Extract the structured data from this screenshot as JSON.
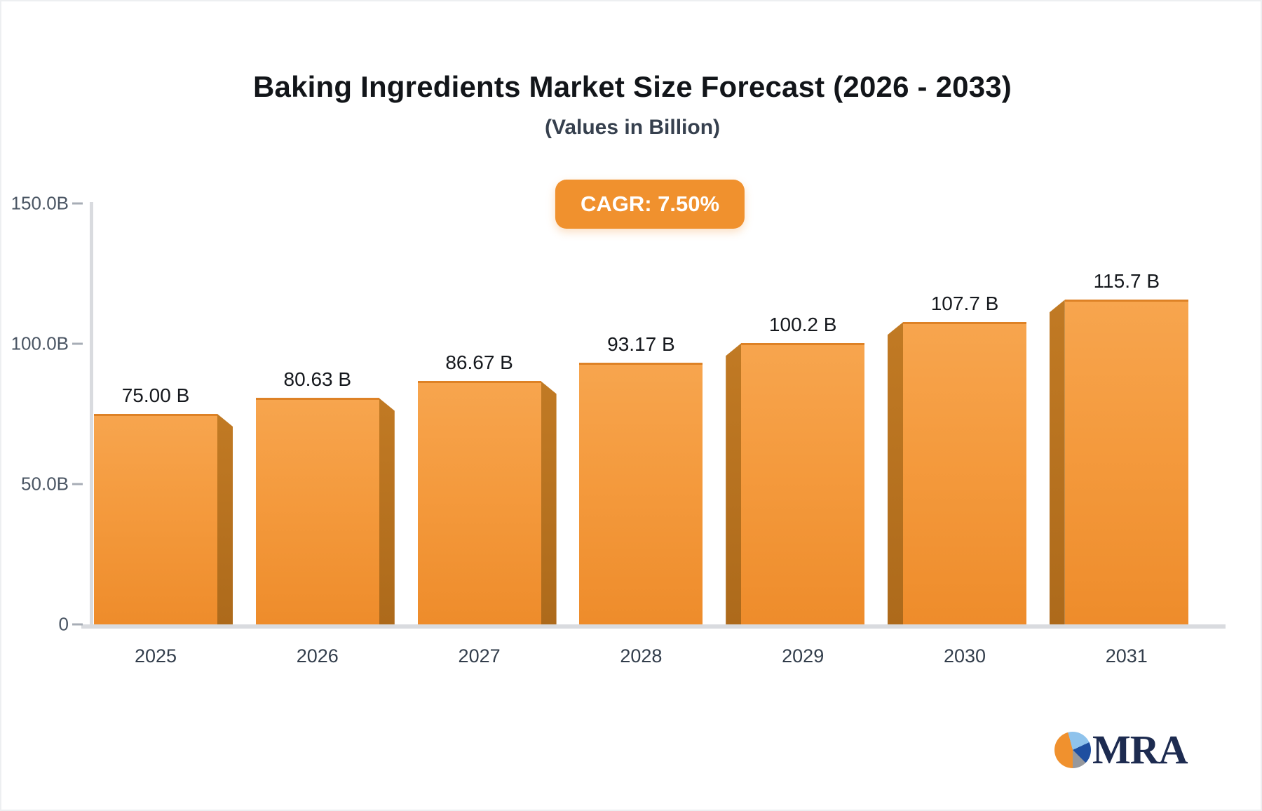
{
  "header": {
    "title": "Baking Ingredients Market Size Forecast (2026 - 2033)",
    "subtitle": "(Values in Billion)",
    "cagr_label": "CAGR: 7.50%"
  },
  "chart_data": {
    "type": "bar",
    "title": "Baking Ingredients Market Size Forecast (2026 - 2033)",
    "subtitle": "(Values in Billion)",
    "xlabel": "",
    "ylabel": "",
    "unit": "Billion",
    "cagr_percent": 7.5,
    "categories": [
      "2025",
      "2026",
      "2027",
      "2028",
      "2029",
      "2030",
      "2031"
    ],
    "values": [
      75.0,
      80.63,
      86.67,
      93.17,
      100.2,
      107.7,
      115.7
    ],
    "value_labels": [
      "75.00 B",
      "80.63 B",
      "86.67 B",
      "93.17 B",
      "100.2 B",
      "107.7 B",
      "115.7 B"
    ],
    "ylim": [
      0,
      150
    ],
    "yticks": [
      {
        "value": 150,
        "label": "150.0B"
      },
      {
        "value": 100,
        "label": "100.0B"
      },
      {
        "value": 50,
        "label": "50.0B"
      },
      {
        "value": 0,
        "label": "0"
      }
    ],
    "grid": false,
    "legend": "none",
    "style": "3d-column",
    "colors": {
      "bar_top": "#F7A54E",
      "bar_bottom": "#EE8C2B",
      "bar_side": "#B8721F",
      "axis": "#D9DBDF",
      "badge_background": "#F0912E",
      "badge_text": "#FFFFFF"
    }
  },
  "branding": {
    "logo_text": "MRA",
    "logo_icon": "pie-chart-icon",
    "logo_colors": {
      "orange": "#F0912E",
      "light_blue": "#8FC3EC",
      "navy": "#1F4FA0",
      "gray": "#96989D",
      "text": "#1D2B50"
    }
  }
}
